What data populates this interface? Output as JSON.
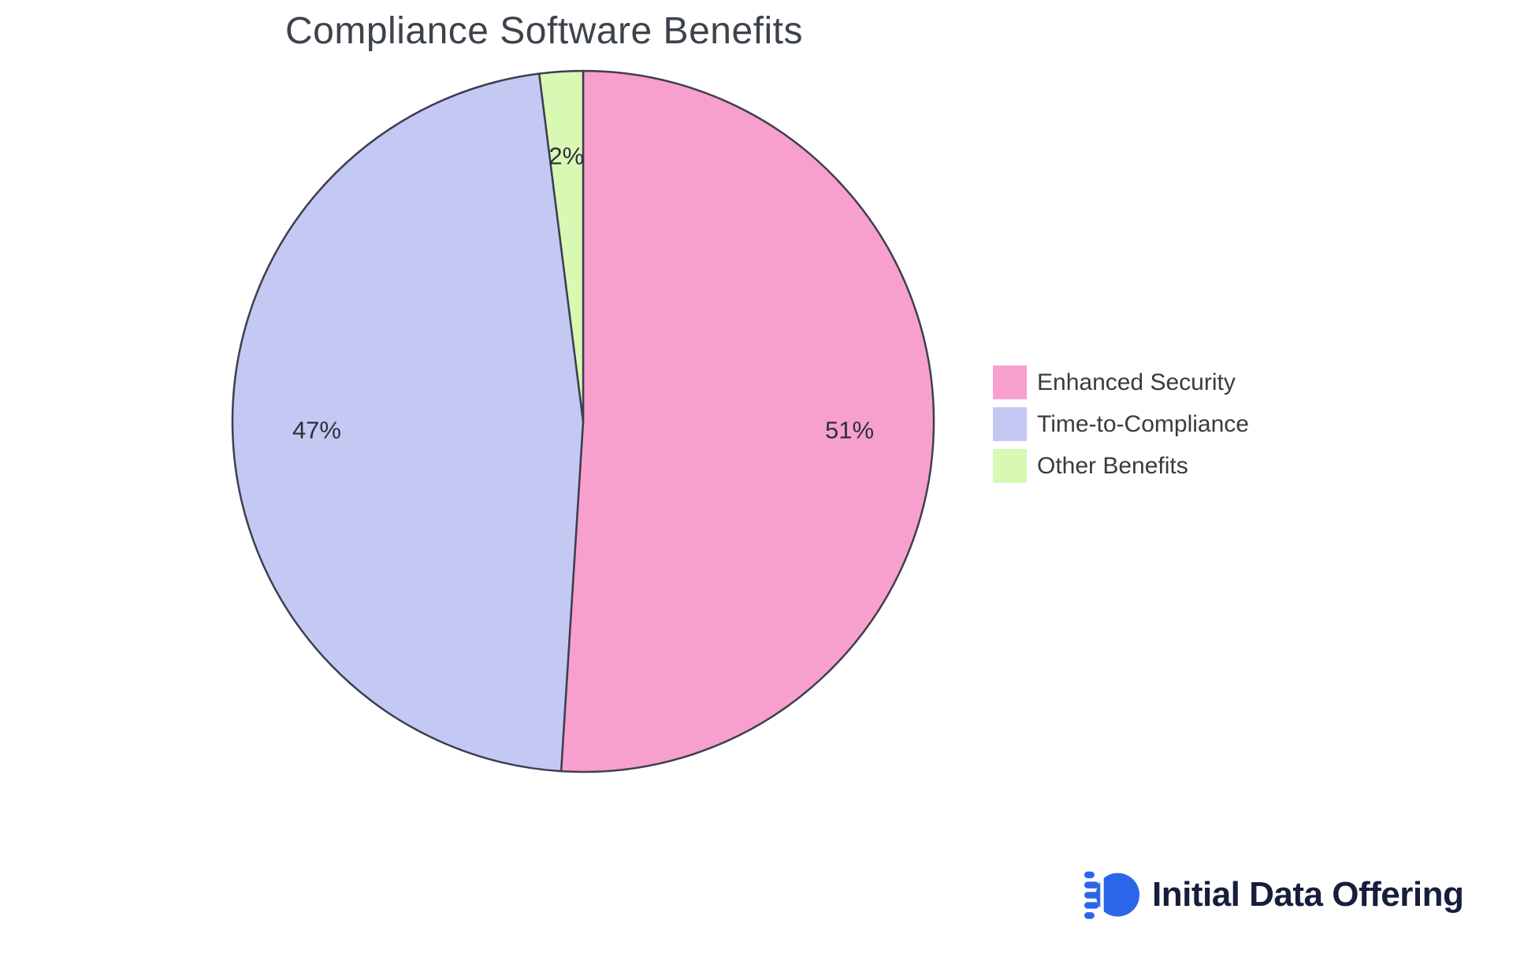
{
  "chart_data": {
    "type": "pie",
    "title": "Compliance Software Benefits",
    "labels": [
      "Enhanced Security",
      "Time-to-Compliance",
      "Other Benefits"
    ],
    "values": [
      51,
      47,
      2
    ],
    "slice_labels": [
      "51%",
      "47%",
      "2%"
    ],
    "colors": [
      "#F8A0CD",
      "#C4C9F4",
      "#D9F8B4"
    ],
    "stroke_color": "#3E3E50",
    "start_angle_deg": 0,
    "direction": "clockwise",
    "legend_position": "right",
    "label_radius_ratio": 0.76
  },
  "legend": {
    "items": [
      {
        "label": "Enhanced Security",
        "color": "#F8A0CD"
      },
      {
        "label": "Time-to-Compliance",
        "color": "#C4C9F4"
      },
      {
        "label": "Other Benefits",
        "color": "#D9F8B4"
      }
    ]
  },
  "branding": {
    "logo_text": "Initial Data Offering",
    "logo_color": "#2B66E8"
  }
}
